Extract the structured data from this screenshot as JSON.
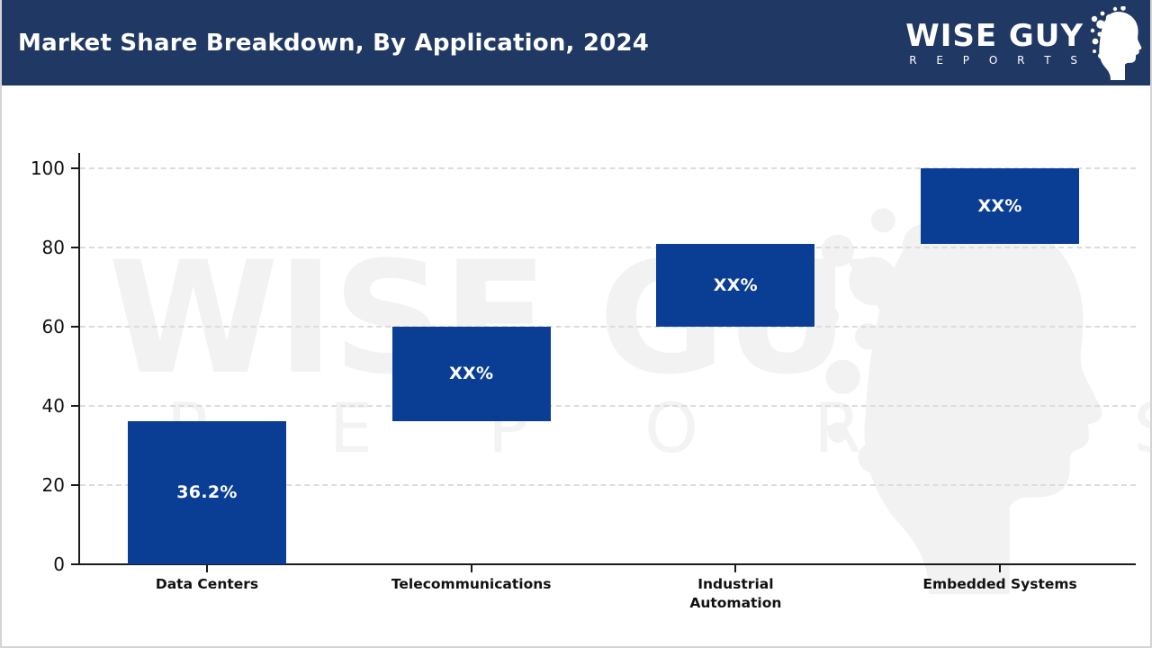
{
  "header": {
    "title": "Market Share Breakdown, By Application, 2024",
    "bg_color": "#203864",
    "logo": {
      "line1": "WISE GUY",
      "line2": "R E P O R T S",
      "head_icon": "wiseguy-head-icon"
    }
  },
  "watermark": {
    "line1": "WISE GUY",
    "line2": "R E P O R T S",
    "head_icon": "wiseguy-head-watermark-icon"
  },
  "chart_data": {
    "type": "bar",
    "subtype": "waterfall-floating-bars",
    "title": "Market Share Breakdown, By Application, 2024",
    "categories": [
      "Data Centers",
      "Telecommunications",
      "Industrial\nAutomation",
      "Embedded Systems"
    ],
    "segments": [
      {
        "category": "Data Centers",
        "start": 0,
        "end": 36.2,
        "label": "36.2%"
      },
      {
        "category": "Telecommunications",
        "start": 36.2,
        "end": 60.0,
        "label": "XX%"
      },
      {
        "category": "Industrial Automation",
        "start": 60.0,
        "end": 81.0,
        "label": "XX%"
      },
      {
        "category": "Embedded Systems",
        "start": 81.0,
        "end": 100.0,
        "label": "XX%"
      }
    ],
    "xlabel": "",
    "ylabel": "",
    "ylim": [
      0,
      100
    ],
    "yticks": [
      0,
      20,
      40,
      60,
      80,
      100
    ],
    "grid": "horizontal-dashed",
    "legend": "none",
    "bar_color": "#0a3e94",
    "value_label_color": "#ffffff"
  }
}
